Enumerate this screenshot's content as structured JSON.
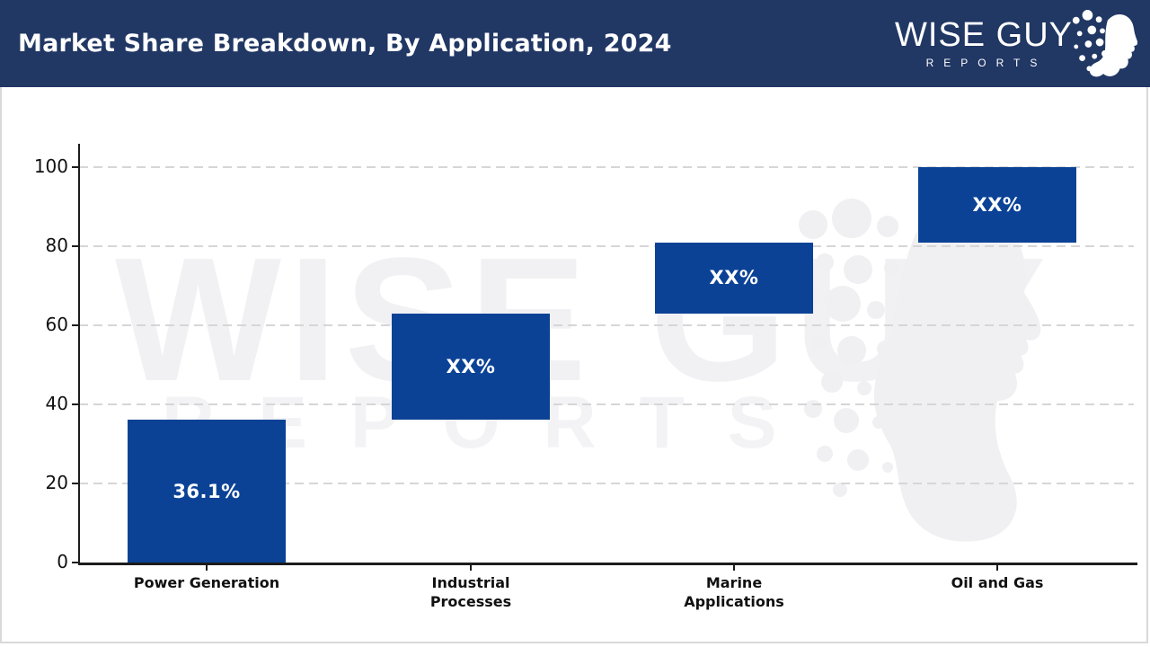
{
  "header": {
    "title": "Market Share Breakdown, By Application, 2024",
    "bg_color": "#213764",
    "logo": {
      "wordmark": "WISE GUY",
      "subtitle": "REPORTS"
    }
  },
  "watermark": {
    "line1": "WISE GUY",
    "line2": "REPORTS"
  },
  "chart_data": {
    "type": "bar",
    "subtype": "waterfall",
    "title": "Market Share Breakdown, By Application, 2024",
    "categories": [
      "Power Generation",
      "Industrial Processes",
      "Marine Applications",
      "Oil and Gas"
    ],
    "category_label_lines": [
      [
        "Power Generation"
      ],
      [
        "Industrial",
        "Processes"
      ],
      [
        "Marine",
        "Applications"
      ],
      [
        "Oil and Gas"
      ]
    ],
    "segments": [
      {
        "category": "Power Generation",
        "start": 0,
        "end": 36.1,
        "value_label": "36.1%"
      },
      {
        "category": "Industrial Processes",
        "start": 36.1,
        "end": 63,
        "value_label": "XX%"
      },
      {
        "category": "Marine Applications",
        "start": 63,
        "end": 81,
        "value_label": "XX%"
      },
      {
        "category": "Oil and Gas",
        "start": 81,
        "end": 100,
        "value_label": "XX%"
      }
    ],
    "yticks": [
      0,
      20,
      40,
      60,
      80,
      100
    ],
    "ylim": [
      0,
      100
    ],
    "bar_color": "#0b4296",
    "grid": {
      "horizontal": true,
      "style": "dashed",
      "color": "#d6d6d6"
    },
    "legend": null
  }
}
